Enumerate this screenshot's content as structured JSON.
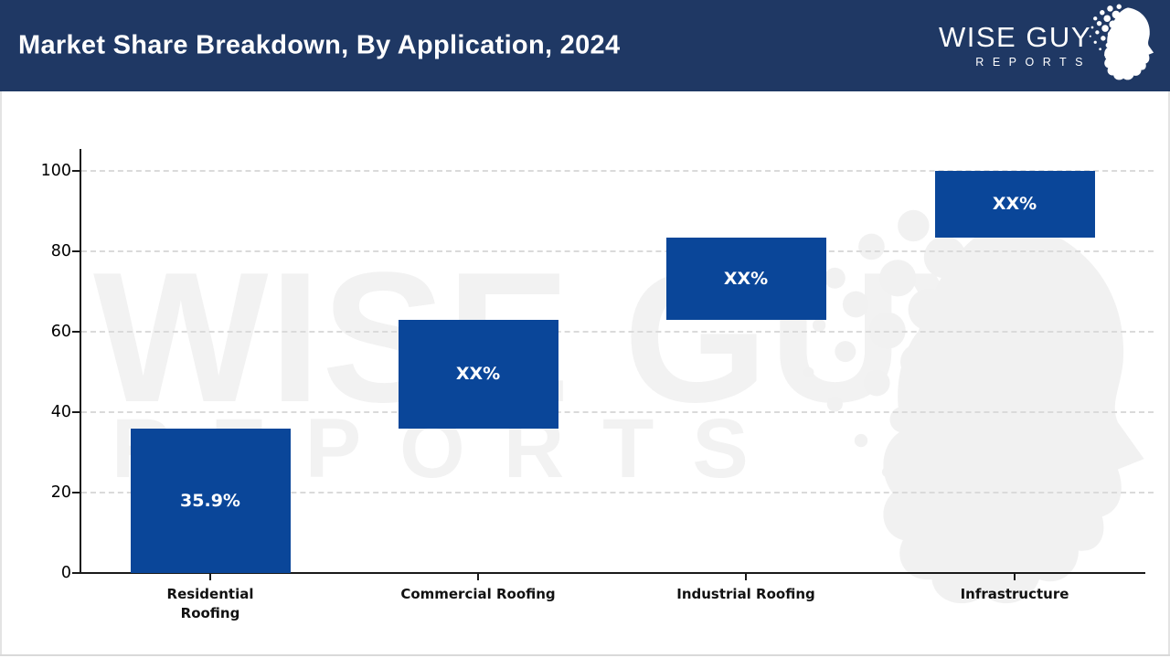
{
  "header": {
    "title": "Market Share Breakdown, By Application, 2024",
    "bg_color": "#1f3864",
    "logo": {
      "line1": "WISE GUY",
      "line2": "REPORTS"
    }
  },
  "watermark": {
    "line1": "WISE GUY",
    "line2": "REPORTS"
  },
  "chart_data": {
    "type": "bar",
    "subtype": "floating-waterfall",
    "title": "Market Share Breakdown, By Application, 2024",
    "categories": [
      "Residential Roofing",
      "Commercial Roofing",
      "Industrial Roofing",
      "Infrastructure"
    ],
    "tick_labels": [
      "Residential\nRoofing",
      "Commercial Roofing",
      "Industrial Roofing",
      "Infrastructure"
    ],
    "segments": [
      {
        "category": "Residential Roofing",
        "start": 0,
        "end": 35.9,
        "value_label": "35.9%"
      },
      {
        "category": "Commercial Roofing",
        "start": 35.9,
        "end": 63,
        "value_label": "XX%"
      },
      {
        "category": "Industrial Roofing",
        "start": 63,
        "end": 83.5,
        "value_label": "XX%"
      },
      {
        "category": "Infrastructure",
        "start": 83.5,
        "end": 100,
        "value_label": "XX%"
      }
    ],
    "ylim": [
      0,
      100
    ],
    "yticks": [
      0,
      20,
      40,
      60,
      80,
      100
    ],
    "grid": "horizontal-dashed",
    "legend": "none",
    "bar_color": "#0a4699",
    "bar_label_color": "#ffffff",
    "axis_color": "#1a1a1a",
    "grid_color": "#dadada"
  }
}
